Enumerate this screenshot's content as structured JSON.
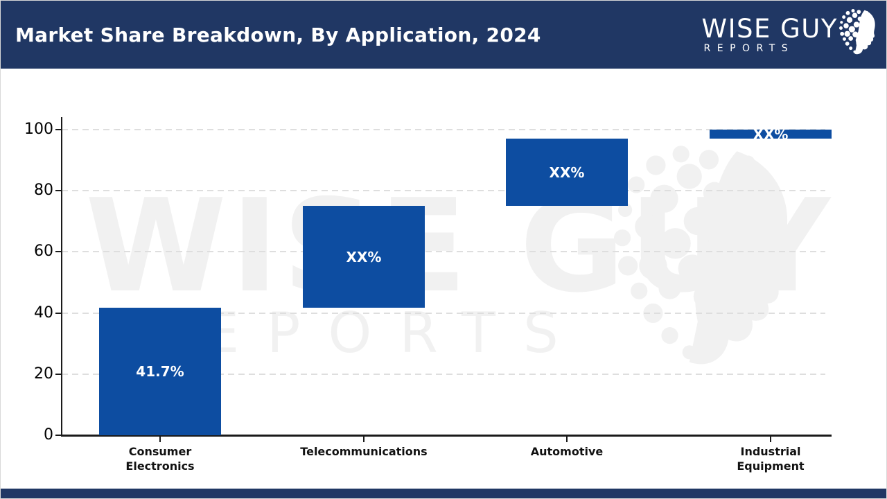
{
  "header": {
    "title": "Market Share Breakdown, By Application, 2024",
    "logo_line1": "WISE GUY",
    "logo_line2": "REPORTS"
  },
  "watermark": {
    "line1": "WISE GUY",
    "line2": "REPORTS"
  },
  "colors": {
    "header_bg": "#203764",
    "footer_bg": "#203764",
    "bar": "#0d4da1",
    "bar_label": "#ffffff",
    "axis": "#1a1a1a",
    "grid": "#dedede",
    "watermark": "#f1f1f1"
  },
  "chart_data": {
    "type": "bar",
    "subtype": "waterfall",
    "title": "Market Share Breakdown, By Application, 2024",
    "xlabel": "",
    "ylabel": "",
    "ylim": [
      0,
      104
    ],
    "yticks": [
      0,
      20,
      40,
      60,
      80,
      100
    ],
    "grid": "horizontal dashed",
    "legend": "none",
    "categories": [
      [
        "Consumer",
        "Electronics"
      ],
      [
        "Telecommunications"
      ],
      [
        "Automotive"
      ],
      [
        "Industrial",
        "Equipment"
      ]
    ],
    "segments": [
      {
        "category": "Consumer Electronics",
        "start": 0,
        "end": 41.7,
        "label": "41.7%"
      },
      {
        "category": "Telecommunications",
        "start": 41.7,
        "end": 75,
        "label": "XX%"
      },
      {
        "category": "Automotive",
        "start": 75,
        "end": 97,
        "label": "XX%"
      },
      {
        "category": "Industrial Equipment",
        "start": 97,
        "end": 100,
        "label": "XX%"
      }
    ]
  }
}
